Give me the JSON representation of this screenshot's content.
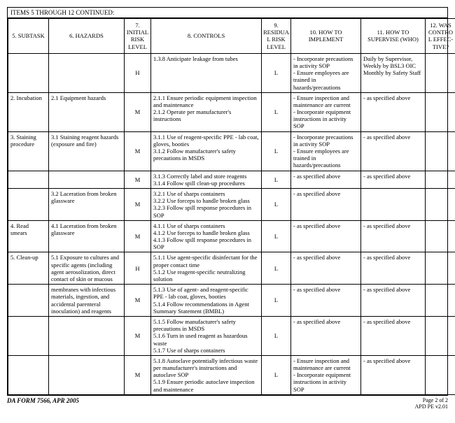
{
  "title": "ITEMS 5 THROUGH 12 CONTINUED:",
  "columns": {
    "c1": "5. SUBTASK",
    "c2": "6. HAZARDS",
    "c3": "7. INITIAL RISK LEVEL",
    "c4": "8. CONTROLS",
    "c5": "9. RESIDUAL RISK LEVEL",
    "c6": "10. HOW TO IMPLEMENT",
    "c7": "11. HOW TO SUPERVISE (WHO)",
    "c8": "12. WAS CONTROL EFFEC-TIVE?"
  },
  "rows": [
    {
      "subtask": "",
      "hazards": "",
      "initial": "H",
      "controls": "1.3.8 Anticipate leakage from tubes",
      "residual": "L",
      "implement": "- Incorporate precautions in activity SOP\n- Ensure employees are trained in hazards/precautions",
      "supervise": "Daily by Supervisor, Weekly by BSL3 OIC Monthly by Safety Staff",
      "effective": ""
    },
    {
      "subtask": "2. Incubation",
      "hazards": "2.1 Equipment hazards",
      "initial": "M",
      "controls": "2.1.1 Ensure periodic equipment inspection and maintenance\n2.1.2 Operate per manufacturer's instructions",
      "residual": "L",
      "implement": "- Ensure inspection and maintenance are current\n- Incorporate equipment instructions in activity SOP",
      "supervise": "- as specified above",
      "effective": ""
    },
    {
      "subtask": "3. Staining procedure",
      "hazards": "3.1 Staining reagent hazards (exposure and fire)",
      "initial": "M",
      "controls": "3.1.1 Use of reagent-specific PPE - lab coat, gloves, booties\n3.1.2 Follow manufacturer's safety precautions in MSDS",
      "residual": "L",
      "implement": "- Incorporate precautions in activity SOP\n- Ensure employees are trained in hazards/precautions",
      "supervise": "- as specified above",
      "effective": ""
    },
    {
      "subtask": "",
      "hazards": "",
      "initial": "M",
      "controls": "3.1.3 Correctly label and store reagents\n3.1.4 Follow spill clean-up procedures",
      "residual": "L",
      "implement": "- as specified above",
      "supervise": "- as specified above",
      "effective": ""
    },
    {
      "subtask": "",
      "hazards": "3.2 Laceration from broken glassware",
      "initial": "M",
      "controls": "3.2.1 Use of sharps containers\n3.2.2 Use forceps to handle broken glass\n3.2.3 Follow spill response procedures in SOP",
      "residual": "L",
      "implement": "- as specified above",
      "supervise": "",
      "effective": ""
    },
    {
      "subtask": "4. Read smears",
      "hazards": "4.1 Laceration from broken glassware",
      "initial": "M",
      "controls": "4.1.1 Use of sharps containers\n4.1.2 Use forceps to handle broken glass\n4.1.3 Follow spill response procedures in SOP",
      "residual": "L",
      "implement": "- as specified above",
      "supervise": "- as specified above",
      "effective": ""
    },
    {
      "subtask": "5. Clean-up",
      "hazards": "5.1 Exposure to cultures and specific agents (including agent aerosolization, direct contact of skin or mucous",
      "initial": "H",
      "controls": "5.1.1 Use agent-specific disinfectant for the proper contact time\n5.1.2 Use reagent-specific neutralizing solution",
      "residual": "L",
      "implement": "- as specified above",
      "supervise": "- as specified above",
      "effective": ""
    },
    {
      "subtask": "",
      "hazards": "membranes with infectious materials, ingestion, and accidental parenteral inoculation) and reagents",
      "initial": "M",
      "controls": "5.1.3 Use of agent- and reagent-specific PPE - lab coat, gloves, booties\n5.1.4 Follow recommendations in Agent Summary Statement (BMBL)",
      "residual": "L",
      "implement": "- as specified above",
      "supervise": "- as specified above",
      "effective": ""
    },
    {
      "subtask": "",
      "hazards": "",
      "initial": "M",
      "controls": "5.1.5 Follow manufacturer's safety precautions in MSDS\n5.1.6 Turn in used reagent as hazardous waste\n5.1.7 Use of sharps containers",
      "residual": "L",
      "implement": "- as specified above",
      "supervise": "- as specified above",
      "effective": ""
    },
    {
      "subtask": "",
      "hazards": "",
      "initial": "M",
      "controls": "5.1.8 Autoclave potentially infectious waste per manufacturer's instructions and autoclave SOP\n5.1.9 Ensure periodic autoclave inspection and maintenance",
      "residual": "L",
      "implement": "- Ensure inspection and maintenance are current\n- Incorporate equipment instructions in activity SOP",
      "supervise": "- as specified above",
      "effective": ""
    }
  ],
  "footer": {
    "left": "DA FORM 7566, APR 2005",
    "page": "Page 2 of 2",
    "apd": "APD PE v2.01"
  }
}
